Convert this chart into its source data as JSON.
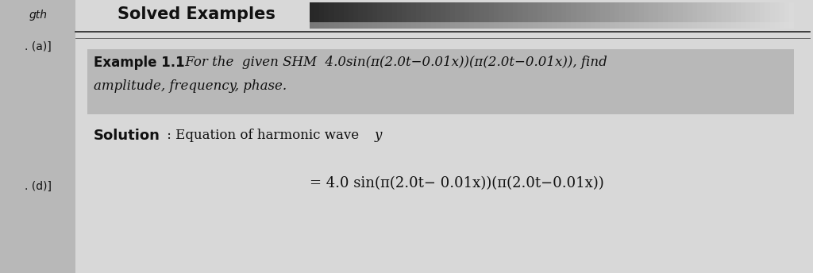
{
  "bg_color": "#d0d0d0",
  "left_strip_color": "#b8b8b8",
  "content_bg_color": "#d4d4d4",
  "title": "Solved Examples",
  "title_bar_dark": "#333333",
  "title_bar_mid": "#888888",
  "title_bar_light": "#c0c0c0",
  "example_box_color": "#b8b8b8",
  "example_bold": "Example 1.1",
  "example_rest_line1": " For the  given SHM  4.0sin(π(2.0t−0.01x))(π(2.0t−0.01x)), find",
  "example_line2": "amplitude, frequency, phase.",
  "solution_bold": "Solution",
  "solution_rest": " : Equation of harmonic wave ",
  "solution_italic_y": "y",
  "equation": "= 4.0 sin(π(2.0t− 0.01x))(π(2.0t−0.01x))",
  "left_text1": "gth",
  "left_text2": ". (a)]",
  "left_text3": ". (d)]"
}
